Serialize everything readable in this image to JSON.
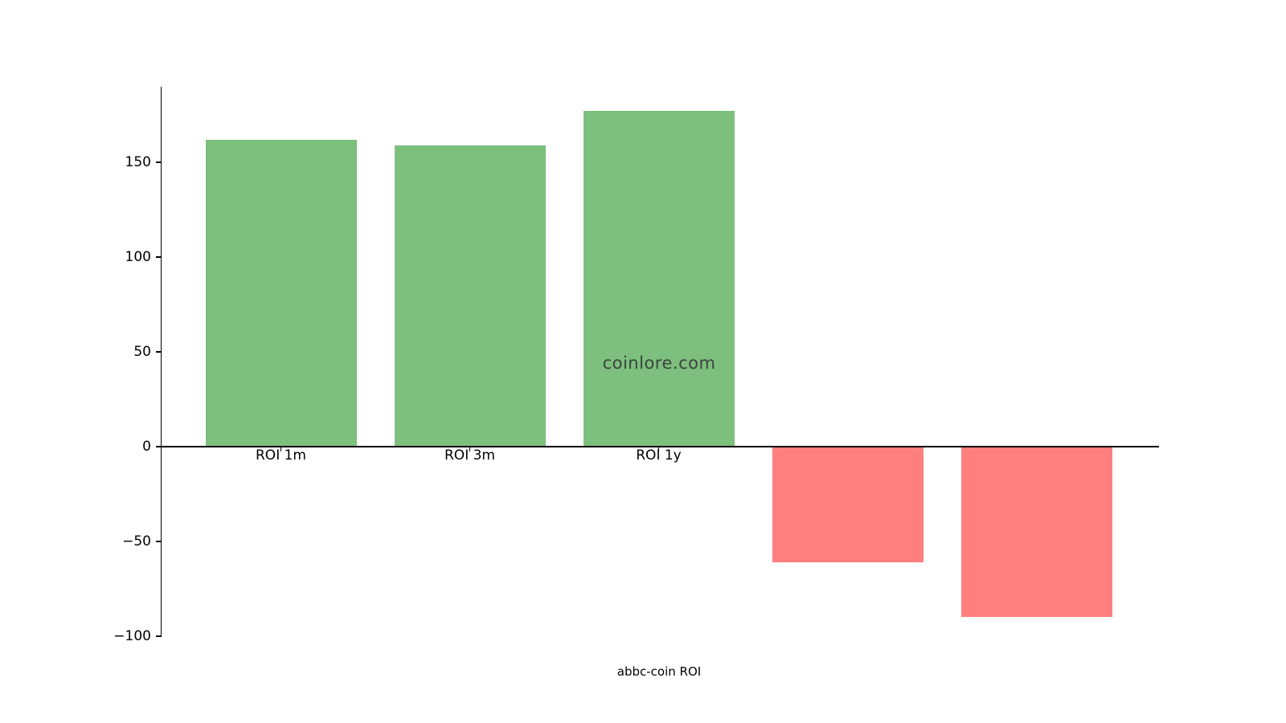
{
  "page": {
    "background": "#ffffff"
  },
  "chart_data": {
    "type": "bar",
    "title": "",
    "xlabel": "abbc-coin ROI",
    "ylabel": "",
    "watermark": "coinlore.com",
    "categories": [
      "ROI 1m",
      "ROI 3m",
      "ROI 1y",
      "",
      ""
    ],
    "values": [
      162,
      159,
      177,
      -61,
      -90
    ],
    "yticks": [
      {
        "value": 150,
        "label": "150"
      },
      {
        "value": 100,
        "label": "100"
      },
      {
        "value": 50,
        "label": "50"
      },
      {
        "value": 0,
        "label": "0"
      },
      {
        "value": -50,
        "label": "−50"
      },
      {
        "value": -100,
        "label": "−100"
      }
    ],
    "ylim": [
      -100,
      190
    ],
    "grid": false,
    "legend": false,
    "colors": {
      "positive": "#7dbf7d",
      "negative": "#ff7f7f",
      "axis": "#000000",
      "watermark": "#3c4440"
    }
  }
}
